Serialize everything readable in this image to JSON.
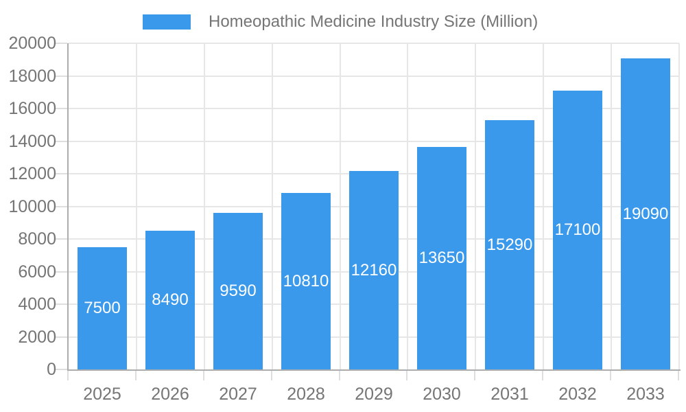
{
  "legend": {
    "label": "Homeopathic Medicine Industry Size (Million)"
  },
  "chart_data": {
    "type": "bar",
    "title": "Homeopathic Medicine Industry Size (Million)",
    "categories": [
      "2025",
      "2026",
      "2027",
      "2028",
      "2029",
      "2030",
      "2031",
      "2032",
      "2033"
    ],
    "values": [
      7500,
      8490,
      9590,
      10810,
      12160,
      13650,
      15290,
      17100,
      19090
    ],
    "xlabel": "",
    "ylabel": "",
    "ylim": [
      0,
      20000
    ],
    "ytick_step": 2000,
    "ytick_labels": [
      "0",
      "2000",
      "4000",
      "6000",
      "8000",
      "10000",
      "12000",
      "14000",
      "16000",
      "18000",
      "20000"
    ],
    "grid": true,
    "legend_position": "top-center",
    "value_labels": "inside-center-white",
    "colors": {
      "bar": "#3b99ec",
      "value_label": "#ffffff",
      "axis_text": "#757575",
      "axis_line": "#adadad",
      "gridline": "#e6e6e6",
      "tick": "#dedede",
      "background": "#ffffff"
    }
  }
}
